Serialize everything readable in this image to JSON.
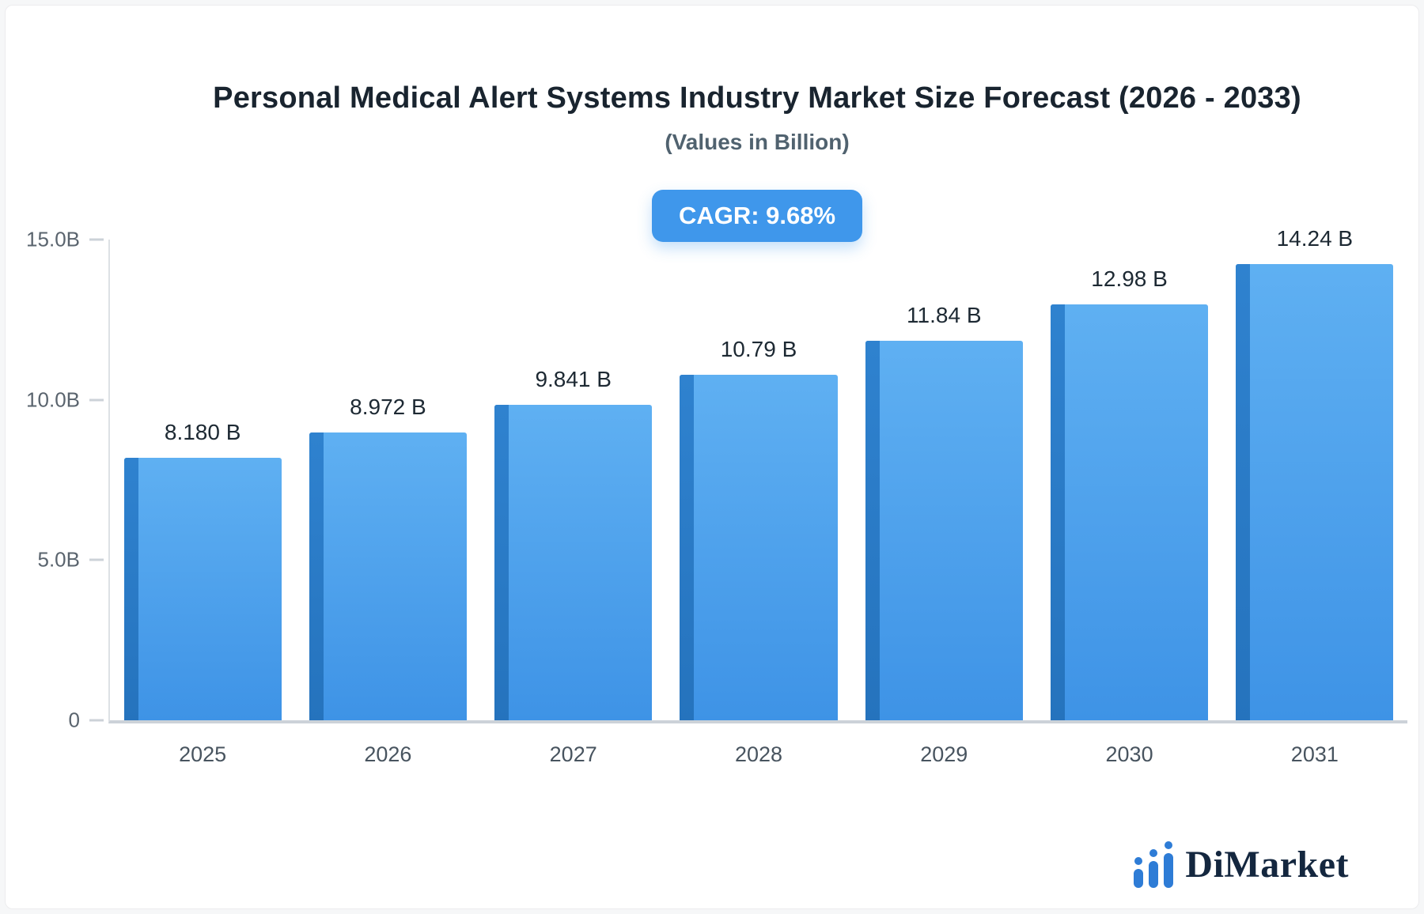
{
  "header": {
    "title": "Personal Medical Alert Systems Industry Market Size Forecast (2026 - 2033)",
    "subtitle": "(Values in Billion)",
    "cagr_badge": "CAGR: 9.68%"
  },
  "brand": {
    "name": "DiMarket",
    "icon": "bar-chart-logo-icon",
    "icon_color": "#2e7cd6",
    "text_color": "#14273f"
  },
  "colors": {
    "bar_face_top": "#5fb0f2",
    "bar_face_bottom": "#3e93e6",
    "bar_edge_dark": "#2573bd",
    "badge_bg": "#3f97eb",
    "axis_line": "#ccd2d8",
    "title_text": "#19242f",
    "subtitle_text": "#50626f"
  },
  "chart_data": {
    "type": "bar",
    "title": "Personal Medical Alert Systems Industry Market Size Forecast (2026 - 2033)",
    "subtitle": "(Values in Billion)",
    "unit": "Billion",
    "cagr": "9.68%",
    "categories": [
      "2025",
      "2026",
      "2027",
      "2028",
      "2029",
      "2030",
      "2031"
    ],
    "values": [
      8.18,
      8.972,
      9.841,
      10.79,
      11.84,
      12.98,
      14.24
    ],
    "value_labels": [
      "8.180 B",
      "8.972 B",
      "9.841 B",
      "10.79 B",
      "11.84 B",
      "12.98 B",
      "14.24 B"
    ],
    "ylim": [
      0,
      15
    ],
    "y_ticks": [
      {
        "value": 15,
        "label": "15.0B"
      },
      {
        "value": 10,
        "label": "10.0B"
      },
      {
        "value": 5,
        "label": "5.0B"
      },
      {
        "value": 0,
        "label": "0"
      }
    ],
    "xlabel": "",
    "ylabel": "",
    "grid": false,
    "legend": false,
    "bar_color": "#3e95e7"
  }
}
